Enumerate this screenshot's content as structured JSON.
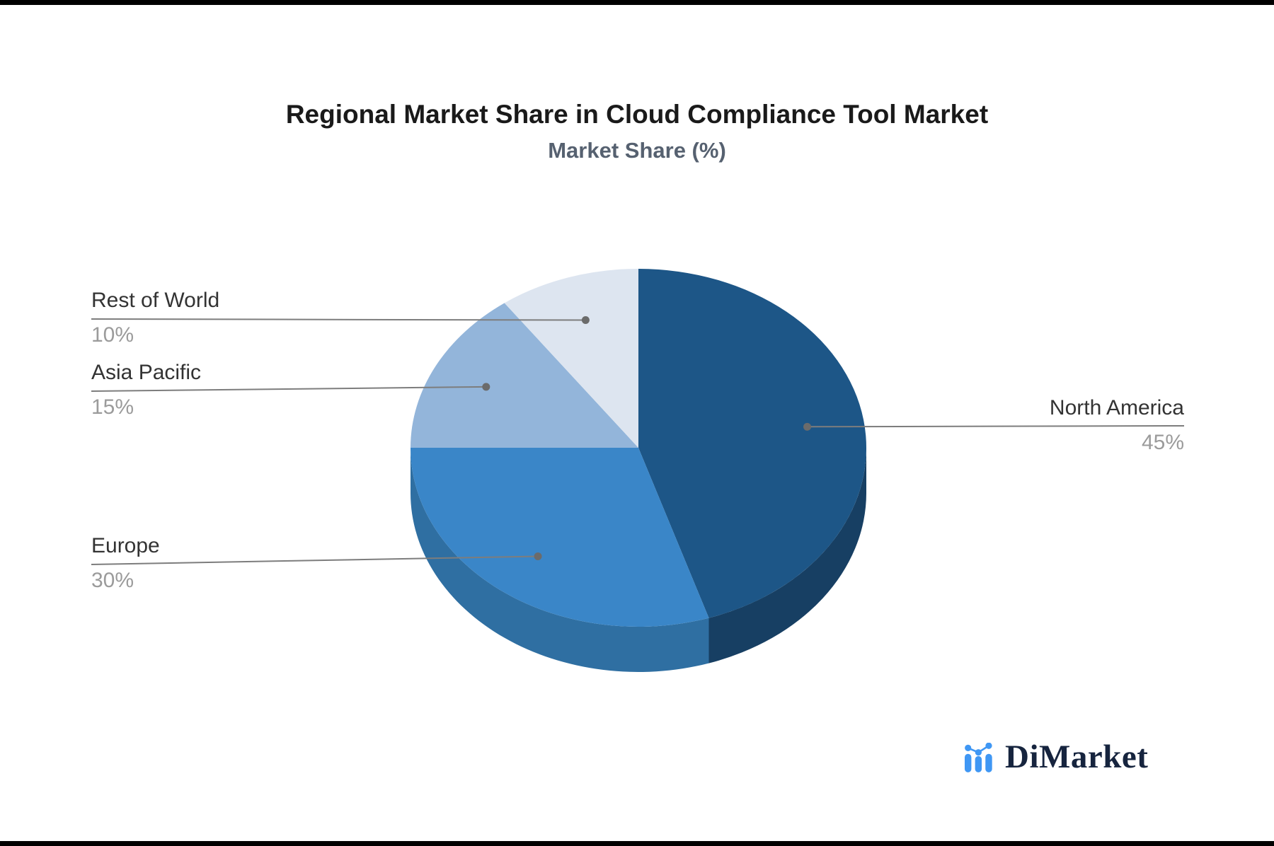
{
  "title": "Regional Market Share in Cloud Compliance Tool Market",
  "subtitle": "Market Share (%)",
  "callouts": [
    {
      "label": "North America",
      "value": "45%",
      "side": "right"
    },
    {
      "label": "Europe",
      "value": "30%",
      "side": "left"
    },
    {
      "label": "Asia Pacific",
      "value": "15%",
      "side": "left"
    },
    {
      "label": "Rest of World",
      "value": "10%",
      "side": "left"
    }
  ],
  "branding": {
    "name": "DiMarket",
    "icon": "bar-chart-trend-logo-icon",
    "icon_color": "#3f97f4",
    "text_color": "#16243e"
  },
  "chart_data": {
    "type": "pie",
    "style": "3d",
    "title": "Regional Market Share in Cloud Compliance Tool Market",
    "subtitle": "Market Share (%)",
    "unit": "percent",
    "start_angle_deg": 0,
    "direction": "clockwise",
    "labels": [
      "North America",
      "Europe",
      "Asia Pacific",
      "Rest of World"
    ],
    "values": [
      45,
      30,
      15,
      10
    ],
    "colors": [
      "#1d5687",
      "#3a86c8",
      "#93b5da",
      "#dde5f0"
    ],
    "side_colors": [
      "#173f63",
      "#2f6fa2",
      "#7596b8",
      "#b8c4d4"
    ],
    "leader_line_color": "#7d7d7d",
    "leader_dot_color": "#6b6b6b",
    "label_color": "#333333",
    "value_color": "#9b9b9b",
    "legend": "leader-line callouts",
    "background": "#ffffff"
  }
}
